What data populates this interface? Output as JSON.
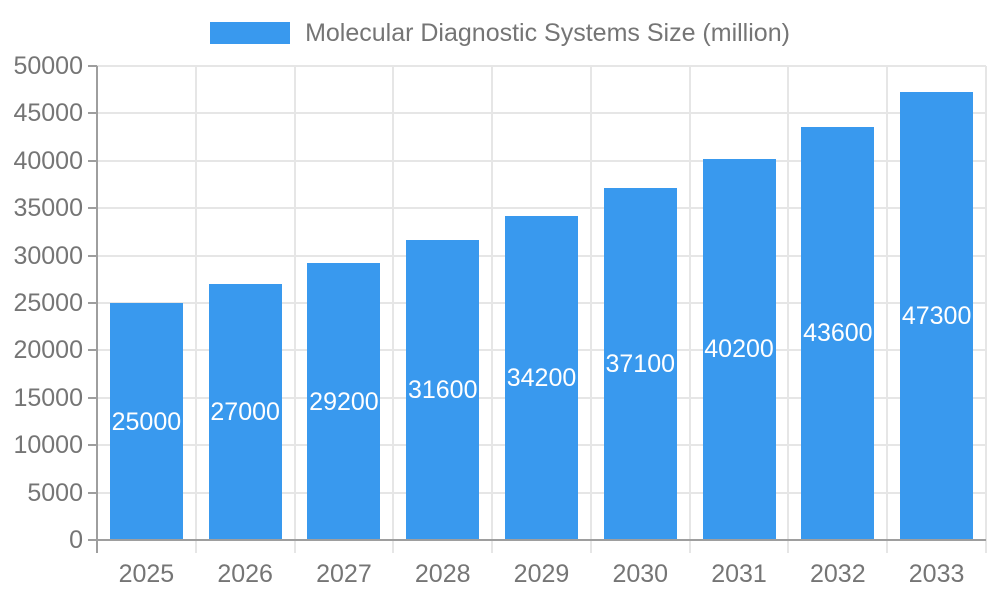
{
  "chart_data": {
    "type": "bar",
    "title": "Molecular Diagnostic Systems Size (million)",
    "categories": [
      "2025",
      "2026",
      "2027",
      "2028",
      "2029",
      "2030",
      "2031",
      "2032",
      "2033"
    ],
    "values": [
      25000,
      27000,
      29200,
      31600,
      34200,
      37100,
      40200,
      43600,
      47300
    ],
    "bar_value_labels": [
      "25000",
      "27000",
      "29200",
      "31600",
      "34200",
      "37100",
      "40200",
      "43600",
      "47300"
    ],
    "xlabel": "",
    "ylabel": "",
    "ylim": [
      0,
      50000
    ],
    "ytick_step": 5000,
    "ytick_labels": [
      "0",
      "5000",
      "10000",
      "15000",
      "20000",
      "25000",
      "30000",
      "35000",
      "40000",
      "45000",
      "50000"
    ],
    "grid": true,
    "legend_position": "top",
    "value_labels_position": "inside-center"
  },
  "colors": {
    "bar": "#3999EE",
    "axis": "#9E9E9E",
    "grid": "#E6E6E6",
    "text": "#757575",
    "bar_label": "#FFFFFF",
    "background": "#FFFFFF"
  }
}
